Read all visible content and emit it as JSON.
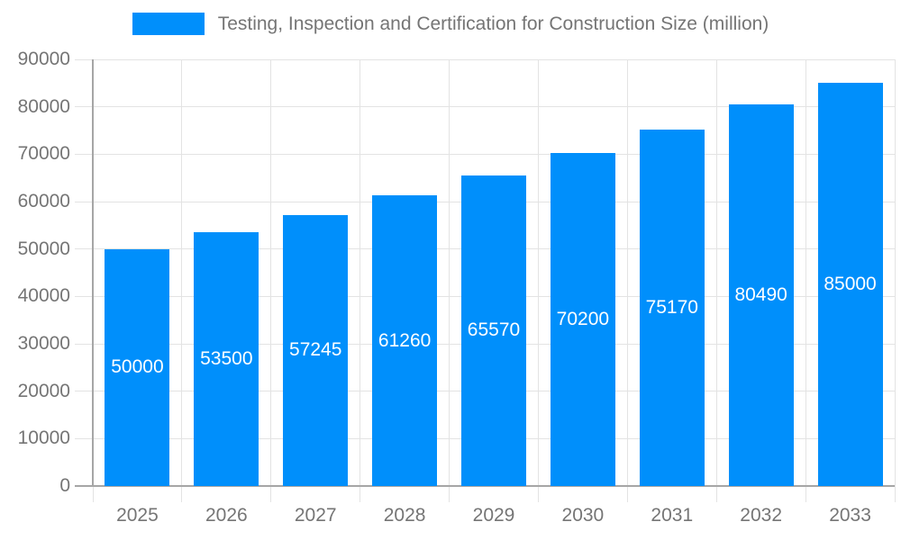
{
  "chart_data": {
    "type": "bar",
    "title": "Testing, Inspection and Certification for Construction Size (million)",
    "legend": {
      "position": "top",
      "entries": [
        "Testing, Inspection and Certification for Construction Size (million)"
      ]
    },
    "categories": [
      "2025",
      "2026",
      "2027",
      "2028",
      "2029",
      "2030",
      "2031",
      "2032",
      "2033"
    ],
    "series": [
      {
        "name": "Testing, Inspection and Certification for Construction Size (million)",
        "values": [
          50000,
          53500,
          57245,
          61260,
          65570,
          70200,
          75170,
          80490,
          85000
        ]
      }
    ],
    "data_labels": [
      "50000",
      "53500",
      "57245",
      "61260",
      "65570",
      "70200",
      "75170",
      "80490",
      "85000"
    ],
    "xlabel": "",
    "ylabel": "",
    "ylim": [
      0,
      90000
    ],
    "yticks": [
      0,
      10000,
      20000,
      30000,
      40000,
      50000,
      60000,
      70000,
      80000,
      90000
    ],
    "grid": true,
    "colors": {
      "bar": "#008FFB",
      "grid": "#e3e3e3",
      "axis_line": "#a6a6a6",
      "tick_text": "#757575",
      "value_text": "#ffffff",
      "background": "#ffffff"
    }
  }
}
